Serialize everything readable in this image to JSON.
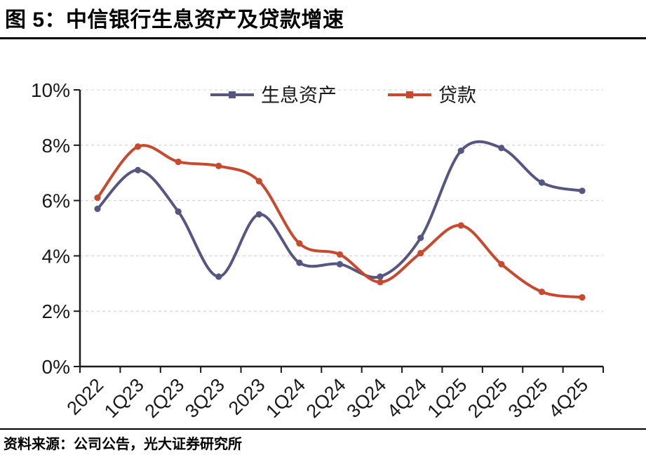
{
  "header": {
    "title": "图 5：中信银行生息资产及贷款增速"
  },
  "footer": {
    "source": "资料来源：公司公告，光大证券研究所"
  },
  "chart_data": {
    "type": "line",
    "title": "图 5：中信银行生息资产及贷款增速",
    "categories": [
      "2022",
      "1Q23",
      "2Q23",
      "3Q23",
      "2023",
      "1Q24",
      "2Q24",
      "3Q24",
      "4Q24",
      "1Q25",
      "2Q25",
      "3Q25",
      "4Q25"
    ],
    "series": [
      {
        "name": "生息资产",
        "color": "#565683",
        "values": [
          5.7,
          7.1,
          5.6,
          3.25,
          5.5,
          3.75,
          3.7,
          3.25,
          4.65,
          7.8,
          7.9,
          6.65,
          6.35
        ]
      },
      {
        "name": "贷款",
        "color": "#C8492D",
        "values": [
          6.1,
          7.95,
          7.4,
          7.25,
          6.7,
          4.45,
          4.05,
          3.05,
          4.1,
          5.1,
          3.7,
          2.7,
          2.5
        ]
      }
    ],
    "xlabel": "",
    "ylabel": "",
    "ylim": [
      0,
      10
    ],
    "ytick_step": 2,
    "ytick_suffix": "%",
    "grid": "horizontal-dashed",
    "legend_position": "top-center",
    "line_style": "smooth",
    "marker": "circle",
    "colors": {
      "axis": "#1a1a1a",
      "grid": "#d8d8d8",
      "text": "#1a1a1a"
    }
  }
}
